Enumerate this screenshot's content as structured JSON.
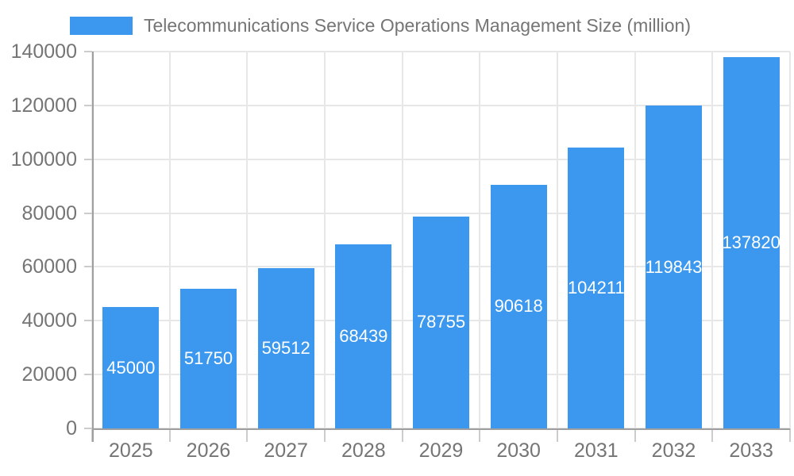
{
  "chart_data": {
    "type": "bar",
    "title": "Telecommunications Service Operations Management Size (million)",
    "categories": [
      "2025",
      "2026",
      "2027",
      "2028",
      "2029",
      "2030",
      "2031",
      "2032",
      "2033"
    ],
    "values": [
      45000,
      51750,
      59512,
      68439,
      78755,
      90618,
      104211,
      119843,
      137820
    ],
    "value_labels": [
      "45000",
      "51750",
      "59512",
      "68439",
      "78755",
      "90618",
      "104211",
      "119843",
      "137820"
    ],
    "xlabel": "",
    "ylabel": "",
    "ylim": [
      0,
      140000
    ],
    "yticks": [
      0,
      20000,
      40000,
      60000,
      80000,
      100000,
      120000,
      140000
    ],
    "ytick_labels": [
      "0",
      "20000",
      "40000",
      "60000",
      "80000",
      "100000",
      "120000",
      "140000"
    ],
    "grid": true,
    "legend_position": "top-left",
    "colors": {
      "bar": "#3b98ee",
      "gridline": "#e7e7e7",
      "axis_line": "#9f9f9f",
      "tick": "#cccccc",
      "axis_text": "#757575",
      "value_text": "#ffffff",
      "background": "#ffffff"
    }
  }
}
